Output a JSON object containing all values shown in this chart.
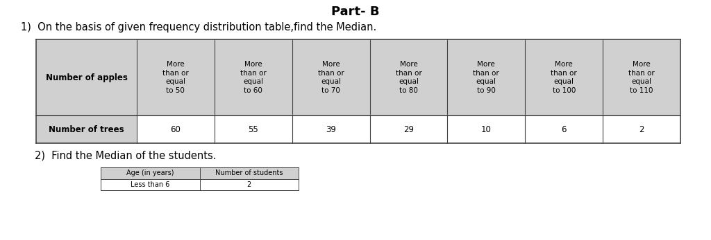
{
  "title": "Part- B",
  "question1": "1)  On the basis of given frequency distribution table,find the Median.",
  "question2": "2)  Find the Median of the students.",
  "table1_col0_header": "Number of apples",
  "table1_row_header": "Number of trees",
  "table1_columns": [
    "More\nthan or\nequal\nto 50",
    "More\nthan or\nequal\nto 60",
    "More\nthan or\nequal\nto 70",
    "More\nthan or\nequal\nto 80",
    "More\nthan or\nequal\nto 90",
    "More\nthan or\nequal\nto 100",
    "More\nthan or\nequal\nto 110"
  ],
  "table1_values": [
    "60",
    "55",
    "39",
    "29",
    "10",
    "6",
    "2"
  ],
  "table2_col1": "Age (in years)",
  "table2_col2": "Number of students",
  "table2_row1_c1": "Less than 6",
  "table2_row1_c2": "2",
  "bg_color": "#ffffff",
  "header_bg": "#d0d0d0",
  "cell_bg": "#ffffff",
  "border_color": "#444444",
  "text_color": "#000000",
  "title_fontsize": 13,
  "question_fontsize": 10.5,
  "table_fontsize": 8.5,
  "col_header_fontsize": 7.5,
  "table2_fontsize": 7.0
}
